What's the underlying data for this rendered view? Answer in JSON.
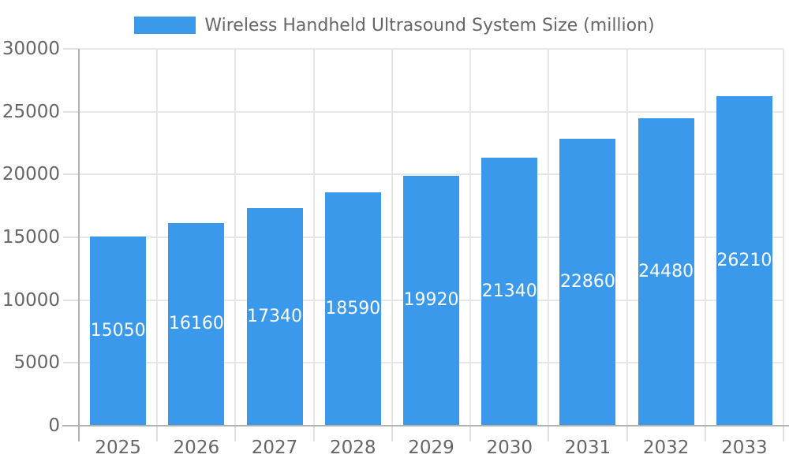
{
  "legend": {
    "label": "Wireless Handheld Ultrasound System Size (million)"
  },
  "chart_data": {
    "type": "bar",
    "title": "Wireless Handheld Ultrasound System Size (million)",
    "categories": [
      "2025",
      "2026",
      "2027",
      "2028",
      "2029",
      "2030",
      "2031",
      "2032",
      "2033"
    ],
    "series": [
      {
        "name": "Wireless Handheld Ultrasound System Size (million)",
        "values": [
          15050,
          16160,
          17340,
          18590,
          19920,
          21340,
          22860,
          24480,
          26210
        ],
        "color": "#3B99EC"
      }
    ],
    "xlabel": "",
    "ylabel": "",
    "ylim": [
      0,
      30000
    ],
    "ytick_step": 5000,
    "ytick_labels": [
      "0",
      "5000",
      "10000",
      "15000",
      "20000",
      "25000",
      "30000"
    ],
    "grid": true,
    "legend_position": "top",
    "value_labels": {
      "visible": true,
      "position": "center",
      "color": "#FFFFFF"
    }
  },
  "colors": {
    "bar": "#3B99EC",
    "axis_label": "#666666",
    "value_label": "#FFFFFF",
    "grid_line": "#E7E7E7",
    "tick_line": "#E0E0E0",
    "axis_line": "#B1B1B1",
    "background": "#FFFFFF"
  }
}
